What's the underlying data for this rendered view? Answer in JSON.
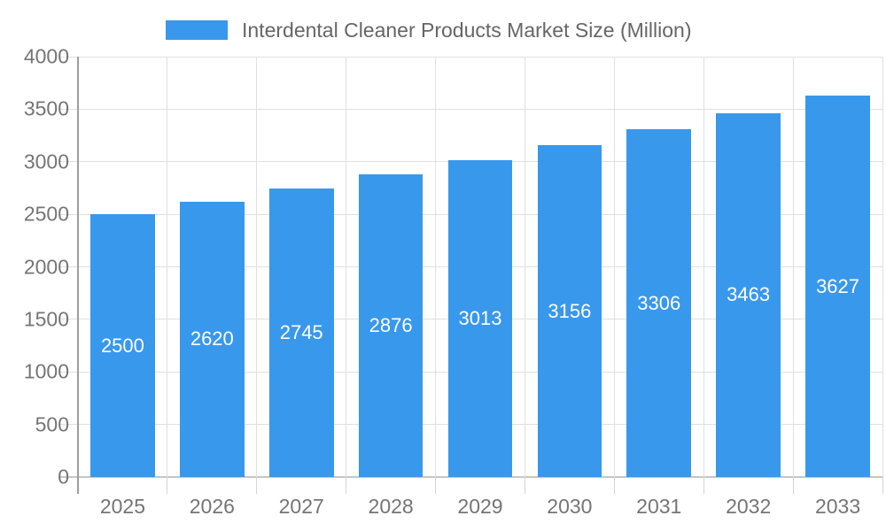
{
  "chart_data": {
    "type": "bar",
    "title": "Interdental Cleaner Products Market Size (Million)",
    "categories": [
      "2025",
      "2026",
      "2027",
      "2028",
      "2029",
      "2030",
      "2031",
      "2032",
      "2033"
    ],
    "values": [
      2500,
      2620,
      2745,
      2876,
      3013,
      3156,
      3306,
      3463,
      3627
    ],
    "xlabel": "",
    "ylabel": "",
    "ylim": [
      0,
      4000
    ],
    "y_tick_step": 500,
    "y_tick_labels": [
      "0",
      "500",
      "1000",
      "1500",
      "2000",
      "2500",
      "3000",
      "3500",
      "4000"
    ],
    "grid": true,
    "legend_position": "top",
    "colors": {
      "bar": "#3898ec",
      "bar_label": "#ffffff",
      "gridline": "#e0e0e0",
      "zero_line": "#c6c6c6",
      "y_axis_line": "#9e9e9e",
      "x_tick": "#d4d4d4",
      "axis_label_text": "#757575",
      "title_text": "#666666",
      "background": "#ffffff"
    }
  }
}
